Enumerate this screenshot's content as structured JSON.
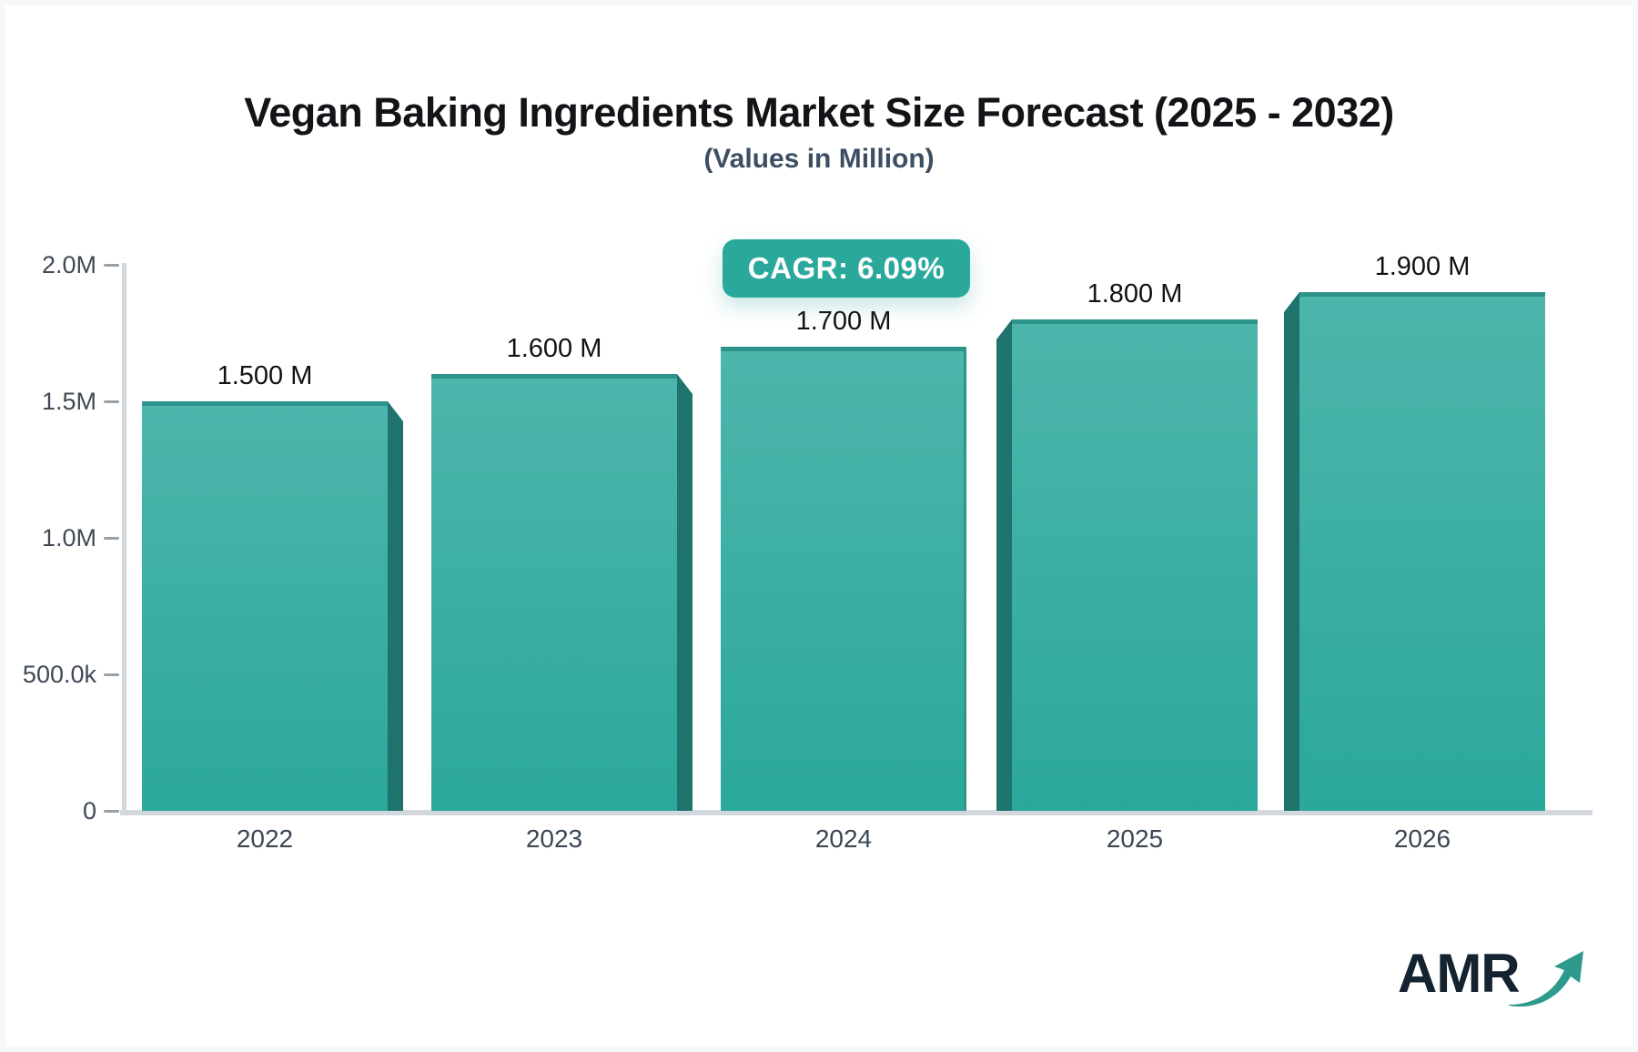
{
  "header": {
    "title": "Vegan Baking Ingredients Market Size Forecast (2025 - 2032)",
    "subtitle": "(Values in Million)"
  },
  "chart_data": {
    "type": "bar",
    "title": "Vegan Baking Ingredients Market Size Forecast (2025 - 2032)",
    "subtitle": "(Values in Million)",
    "unit": "Million",
    "categories": [
      "2022",
      "2023",
      "2024",
      "2025",
      "2026"
    ],
    "values": [
      1500000,
      1600000,
      1700000,
      1800000,
      1900000
    ],
    "value_labels": [
      "1.500 M",
      "1.600 M",
      "1.700 M",
      "1.800 M",
      "1.900 M"
    ],
    "y_axis": {
      "min": 0,
      "max": 2000000,
      "ticks": [
        {
          "label": "2.0M",
          "value": 2000000
        },
        {
          "label": "1.5M",
          "value": 1500000
        },
        {
          "label": "1.0M",
          "value": 1000000
        },
        {
          "label": "500.0k",
          "value": 500000
        },
        {
          "label": "0",
          "value": 0
        }
      ]
    },
    "xlabel": "",
    "ylabel": "",
    "grid": false,
    "legend": "none",
    "annotation": "CAGR: 6.09%"
  },
  "badge": {
    "label": "CAGR: 6.09%"
  },
  "logo": {
    "text": "AMR",
    "arrow_icon": "trend-up-arrow-icon"
  },
  "colors": {
    "bar_face_top": "#4DB5AC",
    "bar_face_bottom": "#2BA89B",
    "bar_face_edge": "#2D948C",
    "bar_side": "#1E746D",
    "badge_bg": "#2AA89B",
    "badge_text": "#FFFFFF",
    "axis_line": "#D2D8DD",
    "tick_text": "#3E4A57",
    "category_text": "#3A4654",
    "value_text": "#101213",
    "title_text": "#121417",
    "subtitle_text": "#3D4E63",
    "logo_text": "#152230",
    "logo_arrow": "#2E9A8C"
  }
}
